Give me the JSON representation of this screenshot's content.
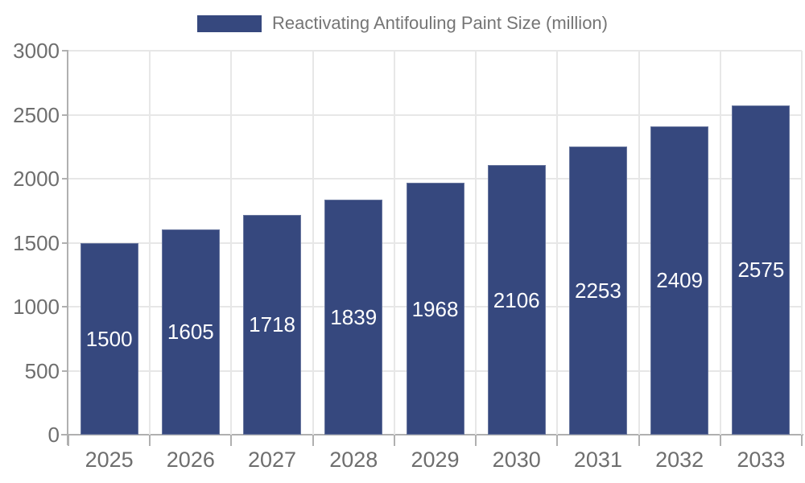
{
  "legend": {
    "label": "Reactivating Antifouling Paint Size (million)",
    "swatch_color": "#36487e"
  },
  "chart_data": {
    "type": "bar",
    "title": "Reactivating Antifouling Paint Size (million)",
    "categories": [
      "2025",
      "2026",
      "2027",
      "2028",
      "2029",
      "2030",
      "2031",
      "2032",
      "2033"
    ],
    "series": [
      {
        "name": "Reactivating Antifouling Paint Size (million)",
        "values": [
          1500,
          1605,
          1718,
          1839,
          1968,
          2106,
          2253,
          2409,
          2575
        ]
      }
    ],
    "xlabel": "",
    "ylabel": "",
    "ylim": [
      0,
      3000
    ],
    "y_ticks": [
      0,
      500,
      1000,
      1500,
      2000,
      2500,
      3000
    ],
    "grid": true,
    "legend_position": "top-center",
    "value_label_position": "inside-center"
  },
  "colors": {
    "bar": "#36487e",
    "axis": "#b0b0b0",
    "grid": "#e7e7e7",
    "tick_text": "#6e6e6e",
    "legend_text": "#757575",
    "value_label": "#ffffff",
    "background": "#ffffff"
  }
}
